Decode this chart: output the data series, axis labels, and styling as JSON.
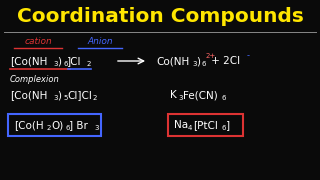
{
  "title": "Coordination Compounds",
  "title_color": "#FFE600",
  "title_fontsize": 14.5,
  "bg_color": "#0a0a0a",
  "text_color": "#FFFFFF",
  "red_color": "#DD3333",
  "blue_color": "#4466FF",
  "orange_color": "#FF6666",
  "label_cation": "cation",
  "label_anion": "Anion",
  "label_complexion": "Complexion",
  "line1_left": "[Co(NH3)6]Cl2",
  "line1_right_main": "Co(NH3)6",
  "line1_right_charge": "2+",
  "line1_right_rest": " + 2Cl",
  "line1_right_minus": "-",
  "line2_left": "[Co(NH3)5Cl]Cl2",
  "line2_right": "K3Fe(CN)6",
  "line3_left": "[Co(H2O)6] Br3",
  "line3_right": "Na4[PtCl6]"
}
